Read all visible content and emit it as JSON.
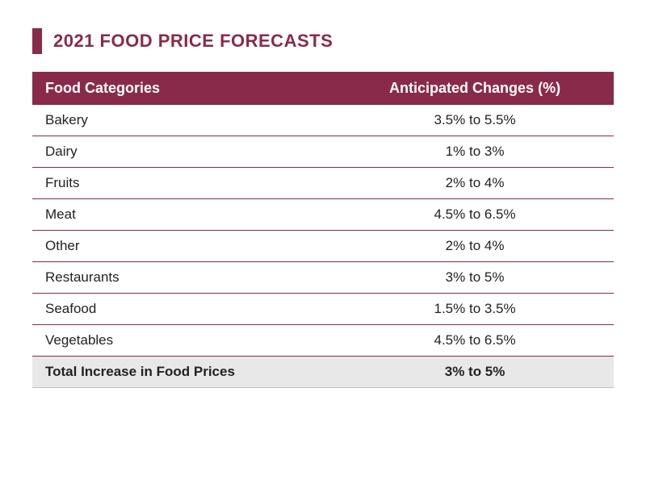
{
  "title": "2021 FOOD PRICE FORECASTS",
  "accent_color": "#8a2a4a",
  "background_color": "#ffffff",
  "total_row_bg": "#e8e8e8",
  "text_color": "#222222",
  "table": {
    "type": "table",
    "columns": [
      "Food Categories",
      "Anticipated Changes (%)"
    ],
    "column_align": [
      "left",
      "center"
    ],
    "header_bg": "#8a2a4a",
    "header_text_color": "#ffffff",
    "row_border_color": "#8a2a4a",
    "header_fontsize": 18,
    "body_fontsize": 17,
    "rows": [
      {
        "category": "Bakery",
        "change": "3.5% to 5.5%"
      },
      {
        "category": "Dairy",
        "change": "1% to 3%"
      },
      {
        "category": "Fruits",
        "change": "2% to 4%"
      },
      {
        "category": "Meat",
        "change": "4.5% to 6.5%"
      },
      {
        "category": "Other",
        "change": "2% to 4%"
      },
      {
        "category": "Restaurants",
        "change": "3% to 5%"
      },
      {
        "category": "Seafood",
        "change": "1.5% to 3.5%"
      },
      {
        "category": "Vegetables",
        "change": "4.5% to 6.5%"
      }
    ],
    "total": {
      "label": "Total Increase in Food Prices",
      "change": "3% to 5%"
    }
  }
}
